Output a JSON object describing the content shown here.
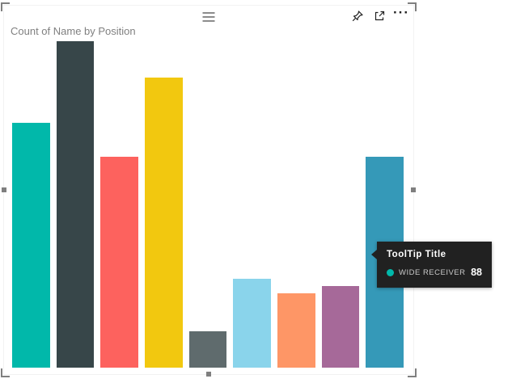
{
  "visual": {
    "title": "Count of Name by Position"
  },
  "toolbar": {
    "grip_icon": "drag-grip-lines",
    "pin_icon": "pushpin",
    "focus_icon": "focus-mode-expand",
    "more_label": "···"
  },
  "tooltip": {
    "title": "ToolTip Title",
    "label": "WIDE RECEIVER",
    "value": "88",
    "marker_color": "#01B8AA",
    "background": "#212121"
  },
  "chart_data": {
    "type": "bar",
    "title": "Count of Name by Position",
    "categories": [
      "",
      "",
      "",
      "",
      "",
      "",
      "",
      "",
      "WIDE RECEIVER"
    ],
    "values": [
      102,
      136,
      88,
      121,
      15,
      37,
      31,
      34,
      88
    ],
    "colors": [
      "#01B8AA",
      "#374649",
      "#FD625E",
      "#F2C80F",
      "#5F6B6D",
      "#8AD4EB",
      "#FE9666",
      "#A66999",
      "#3599B8"
    ],
    "highlighted_index": 8,
    "xlabel": "",
    "ylabel": "",
    "ylim": [
      0,
      136
    ],
    "axes_visible": false,
    "grid": false,
    "legend": "none"
  }
}
